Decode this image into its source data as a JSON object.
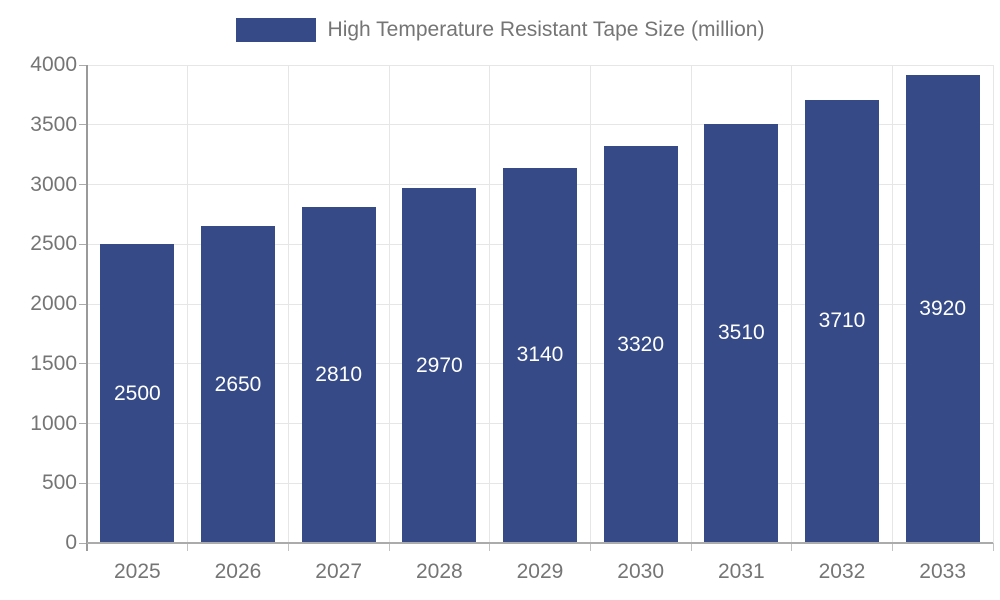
{
  "chart_data": {
    "type": "bar",
    "title": "High Temperature Resistant Tape Size (million)",
    "xlabel": "",
    "ylabel": "",
    "categories": [
      "2025",
      "2026",
      "2027",
      "2028",
      "2029",
      "2030",
      "2031",
      "2032",
      "2033"
    ],
    "values": [
      2500,
      2650,
      2810,
      2970,
      3140,
      3320,
      3510,
      3710,
      3920
    ],
    "ylim": [
      0,
      4000
    ],
    "yticks": [
      0,
      500,
      1000,
      1500,
      2000,
      2500,
      3000,
      3500,
      4000
    ],
    "grid": true,
    "legend_position": "top",
    "colors": {
      "bar": "#354a86",
      "bar_label": "#ffffff",
      "axis_text": "#757575",
      "grid_line": "#e6e6e6",
      "x_axis_line": "#ababab",
      "y_axis_line": "#9a9a9a"
    }
  },
  "legend": {
    "label": "High Temperature Resistant Tape Size (million)"
  }
}
